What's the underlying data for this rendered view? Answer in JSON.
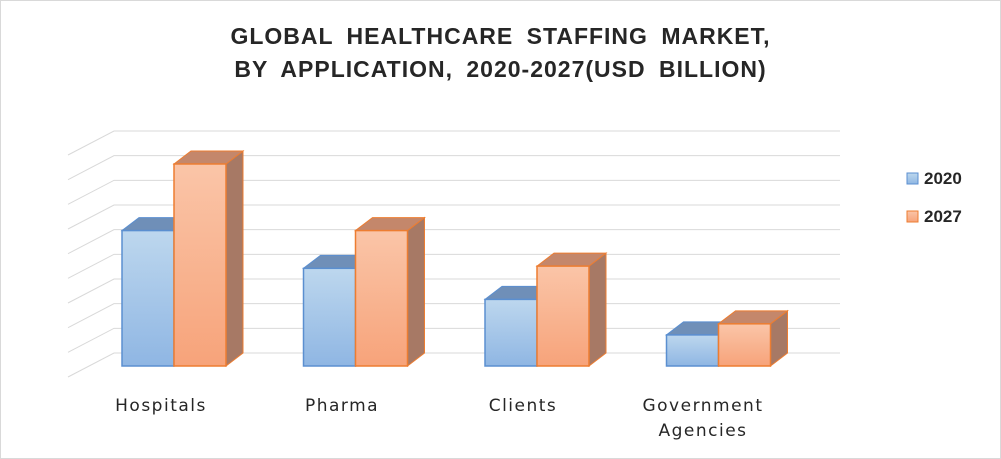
{
  "title": {
    "line1": "GLOBAL HEALTHCARE STAFFING MARKET,",
    "line2": "BY APPLICATION, 2020-2027(USD BILLION)"
  },
  "chart_data": {
    "type": "bar",
    "categories": [
      [
        "Hospitals"
      ],
      [
        "Pharma"
      ],
      [
        "Clients"
      ],
      [
        "Government",
        "Agencies"
      ]
    ],
    "series": [
      {
        "name": "2020",
        "values": [
          6.1,
          4.4,
          3.0,
          1.4
        ],
        "color": "#9dc3e6",
        "edge": "#5b8fd0"
      },
      {
        "name": "2027",
        "values": [
          9.1,
          6.1,
          4.5,
          1.9
        ],
        "color": "#f8b48f",
        "edge": "#ed7d31"
      }
    ],
    "ylim": [
      0,
      10
    ],
    "grid": true,
    "legend": "right",
    "three_d": true
  }
}
